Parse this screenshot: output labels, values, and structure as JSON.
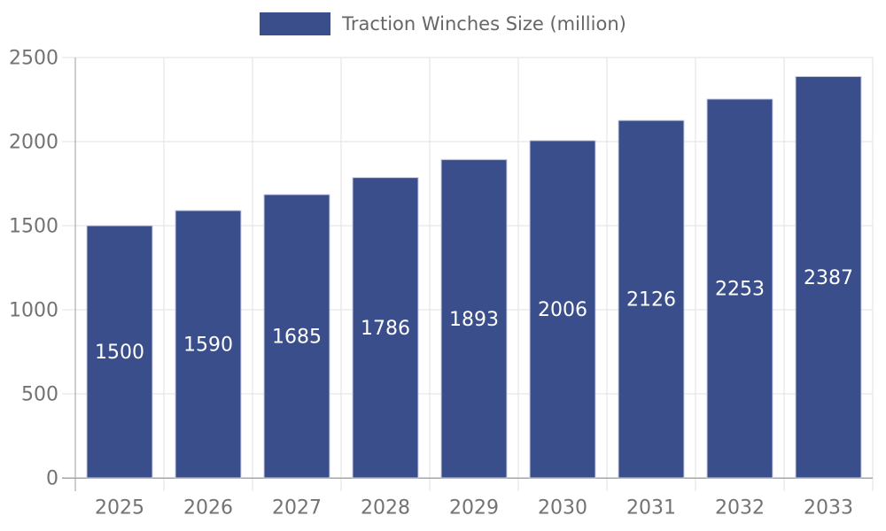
{
  "chart_data": {
    "type": "bar",
    "title": "Traction Winches Size (million)",
    "categories": [
      "2025",
      "2026",
      "2027",
      "2028",
      "2029",
      "2030",
      "2031",
      "2032",
      "2033"
    ],
    "values": [
      1500,
      1590,
      1685,
      1786,
      1893,
      2006,
      2126,
      2253,
      2387
    ],
    "xlabel": "",
    "ylabel": "",
    "ylim": [
      0,
      2500
    ],
    "yticks": [
      0,
      500,
      1000,
      1500,
      2000,
      2500
    ],
    "grid": true,
    "legend_position": "top-center",
    "value_labels": "white, centered inside bars"
  },
  "legend": {
    "label": "Traction Winches Size (million)"
  },
  "colors": {
    "bar": "#3A4E8C",
    "bar_border": "#C9CFE0",
    "grid": "#E2E2E2",
    "axis": "#9C9C9C",
    "baseline": "#A6A6A6",
    "tick_label": "#737373",
    "value_label": "#FFFFFF",
    "legend_text": "#666666",
    "background": "#FFFFFF"
  }
}
